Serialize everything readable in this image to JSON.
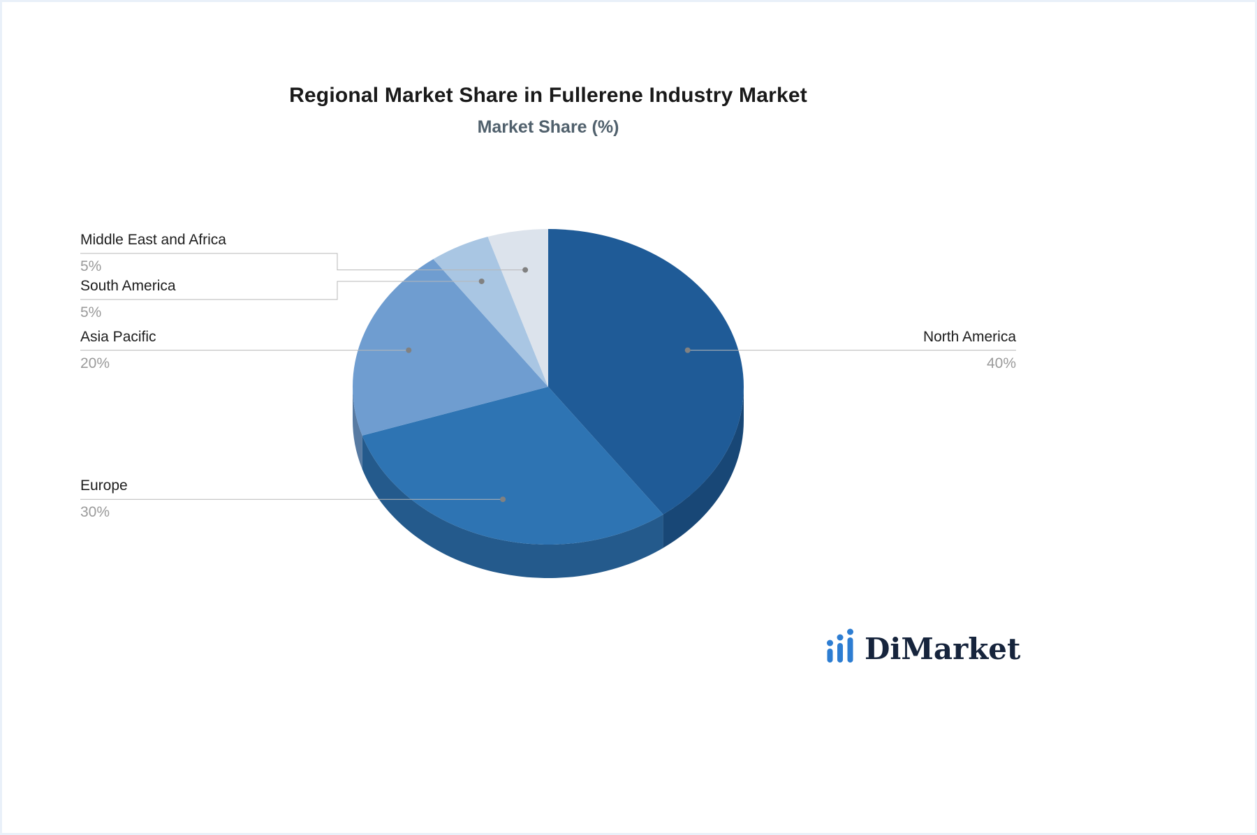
{
  "chart_data": {
    "type": "pie",
    "title": "Regional Market Share in Fullerene Industry Market",
    "subtitle": "Market Share (%)",
    "style": "3d",
    "start_angle_deg": 0,
    "direction": "clockwise",
    "unit": "%",
    "slices": [
      {
        "label": "North America",
        "value": 40,
        "pct": "40%",
        "color": "#1f5b97"
      },
      {
        "label": "Europe",
        "value": 30,
        "pct": "30%",
        "color": "#2e74b3"
      },
      {
        "label": "Asia Pacific",
        "value": 20,
        "pct": "20%",
        "color": "#6f9dd0"
      },
      {
        "label": "South America",
        "value": 5,
        "pct": "5%",
        "color": "#a9c6e3"
      },
      {
        "label": "Middle East and Africa",
        "value": 5,
        "pct": "5%",
        "color": "#dce3ec"
      }
    ],
    "label_text_color": "#1d1d1d",
    "label_value_color": "#9a9a9a",
    "connector_color": "#b7b7b7"
  },
  "branding": {
    "logo_text": "DiMarket",
    "accent_color": "#2d7dd2",
    "text_color": "#16243c"
  }
}
